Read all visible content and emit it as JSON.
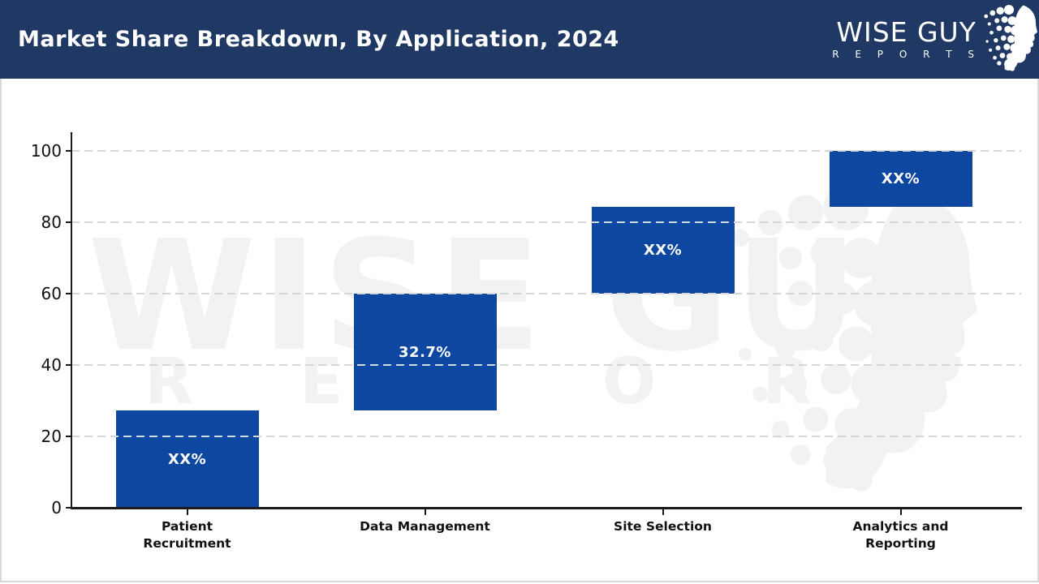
{
  "header": {
    "title": "Market Share Breakdown, By Application, 2024",
    "bg_color": "#1f3864",
    "logo": {
      "name": "WISE GUY REPORTS",
      "line1": "WISE GUY",
      "line2": "R E P O R T S"
    }
  },
  "watermark": {
    "line1": "WISE GU",
    "line2": "R E P O R T S"
  },
  "chart_data": {
    "type": "bar",
    "subtype": "floating-segment-waterfall",
    "title": "Market Share Breakdown, By Application, 2024",
    "xlabel": "",
    "ylabel": "",
    "ylim": [
      0,
      100
    ],
    "yticks": [
      0,
      20,
      40,
      60,
      80,
      100
    ],
    "grid": "horizontal-dashed",
    "legend": "none",
    "bar_color": "#0d47a1",
    "bar_label_color": "#ffffff",
    "categories": [
      "Patient\nRecruitment",
      "Data Management",
      "Site Selection",
      "Analytics and\nReporting"
    ],
    "segments": [
      {
        "category": "Patient Recruitment",
        "label": "XX%",
        "start": 0,
        "end": 27.2
      },
      {
        "category": "Data Management",
        "label": "32.7%",
        "start": 27.2,
        "end": 59.9
      },
      {
        "category": "Site Selection",
        "label": "XX%",
        "start": 60.1,
        "end": 84.3
      },
      {
        "category": "Analytics and Reporting",
        "label": "XX%",
        "start": 84.3,
        "end": 100
      }
    ]
  }
}
